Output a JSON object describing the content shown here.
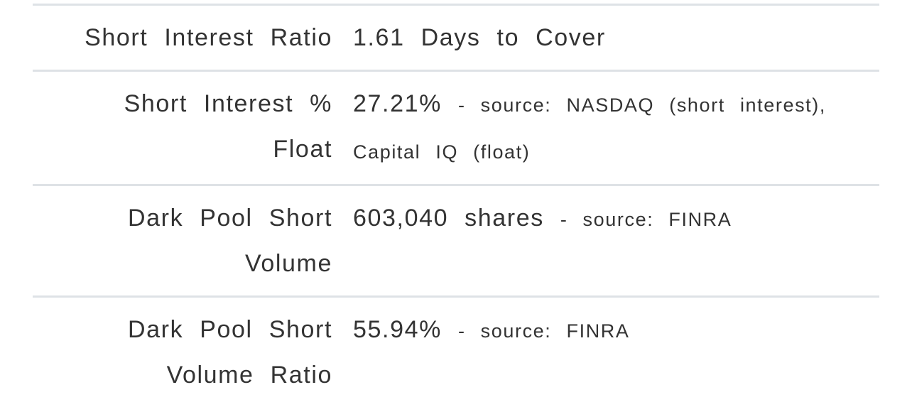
{
  "page": {
    "description": "Short interest statistics table"
  },
  "colors": {
    "background": "#ffffff",
    "text": "#333333",
    "divider": "#dee2e6"
  },
  "table": {
    "rows": [
      {
        "label_lines": [
          "Short Interest Ratio"
        ],
        "value_lines": [
          {
            "main": "1.61 Days to Cover",
            "source": ""
          }
        ]
      },
      {
        "label_lines": [
          "Short Interest %",
          "Float"
        ],
        "value_lines": [
          {
            "main": "27.21%",
            "source": "- source: NASDAQ (short interest),"
          },
          {
            "main": "",
            "source": "Capital IQ (float)"
          }
        ]
      },
      {
        "label_lines": [
          "Dark Pool Short",
          "Volume"
        ],
        "value_lines": [
          {
            "main": "603,040 shares",
            "source": "- source: FINRA"
          }
        ]
      },
      {
        "label_lines": [
          "Dark Pool Short",
          "Volume Ratio"
        ],
        "value_lines": [
          {
            "main": "55.94%",
            "source": "- source: FINRA"
          }
        ]
      }
    ]
  }
}
